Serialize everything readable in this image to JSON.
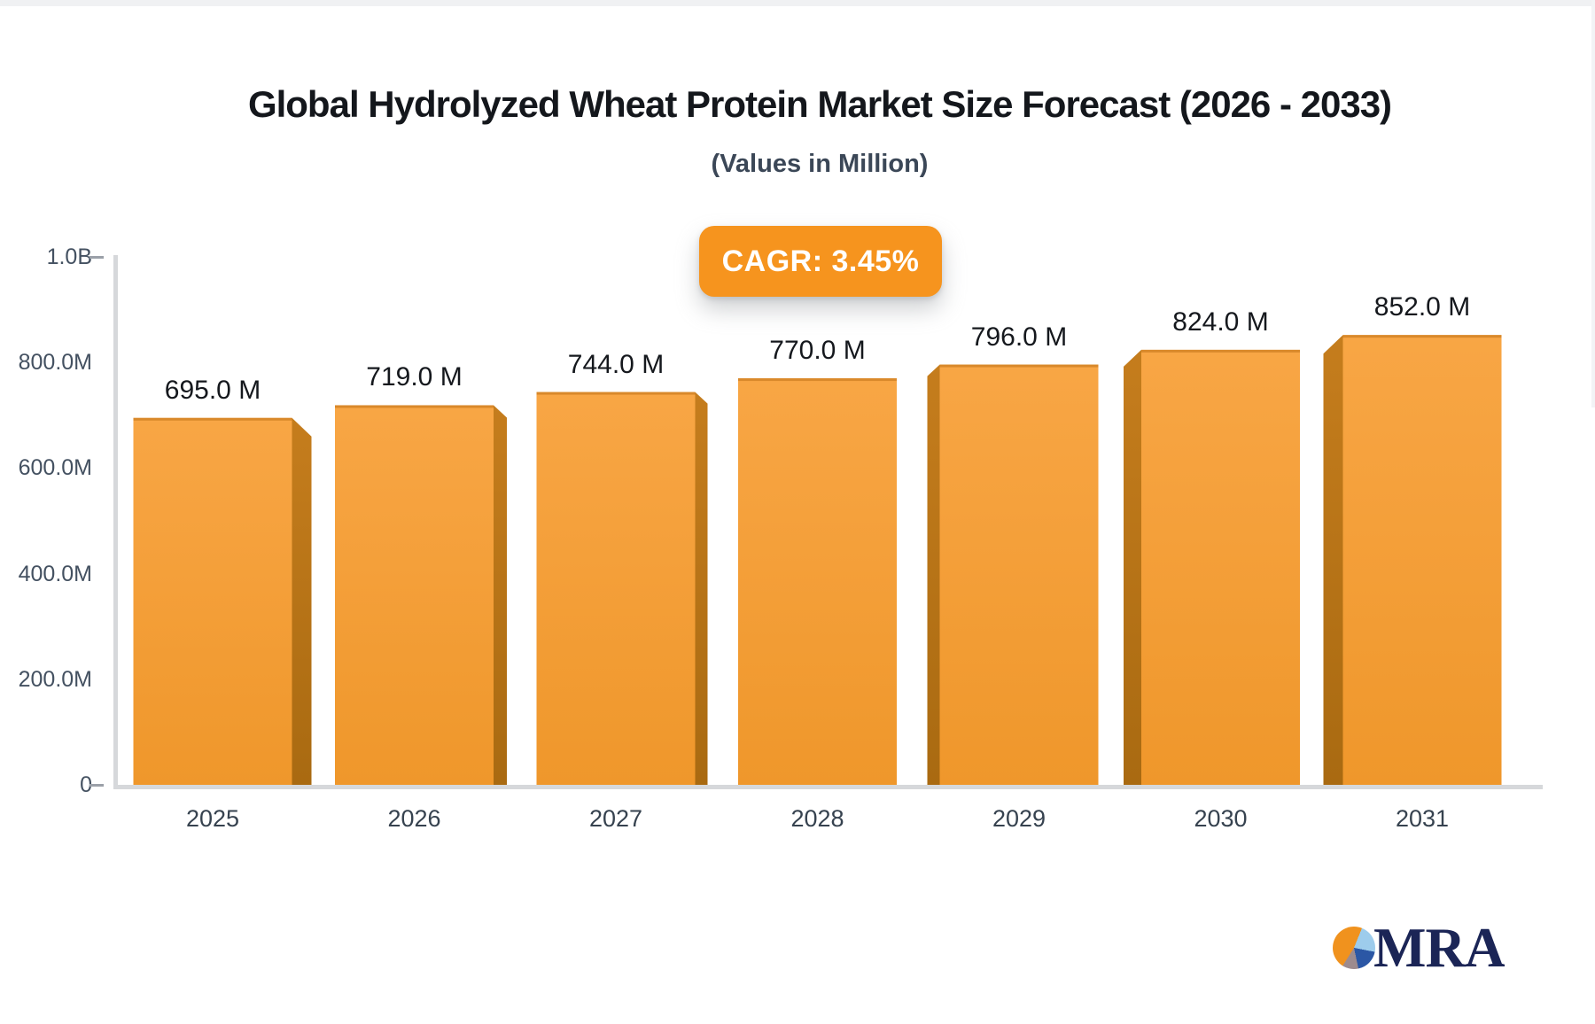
{
  "header": {
    "title": "Global Hydrolyzed Wheat Protein Market Size Forecast (2026 - 2033)",
    "subtitle": "(Values in Million)"
  },
  "cagr_badge": {
    "label": "CAGR: 3.45%",
    "background_color": "#F6941E",
    "text_color": "#FFFFFF"
  },
  "chart_data": {
    "type": "bar",
    "title": "Global Hydrolyzed Wheat Protein Market Size Forecast (2026 - 2033)",
    "subtitle": "(Values in Million)",
    "cagr": "3.45%",
    "categories": [
      "2025",
      "2026",
      "2027",
      "2028",
      "2029",
      "2030",
      "2031"
    ],
    "values": [
      695,
      719,
      744,
      770,
      796,
      824,
      852
    ],
    "data_labels": [
      "695.0 M",
      "719.0 M",
      "744.0 M",
      "770.0 M",
      "796.0 M",
      "824.0 M",
      "852.0 M"
    ],
    "ylim": [
      0,
      1000
    ],
    "y_axis": {
      "ticks": [
        {
          "label": "1.0B",
          "value": 1000,
          "dash": true
        },
        {
          "label": "800.0M",
          "value": 800,
          "dash": false
        },
        {
          "label": "600.0M",
          "value": 600,
          "dash": false
        },
        {
          "label": "400.0M",
          "value": 400,
          "dash": false
        },
        {
          "label": "200.0M",
          "value": 200,
          "dash": false
        },
        {
          "label": "0",
          "value": 0,
          "dash": true
        }
      ]
    },
    "grid": false,
    "legend": false,
    "bar_face_color_top": "#F8A645",
    "bar_face_color_bottom": "#EF972B",
    "bar_top_edge_color": "#D9892B",
    "bar_side_color_top": "#C57D1D",
    "bar_side_color_bottom": "#A96A11"
  },
  "logo": {
    "text": "MRA",
    "icon": "pie-chart-icon",
    "text_color": "#1B2556",
    "pie_colors": [
      "#F0921E",
      "#9DCCEC",
      "#2B57A5",
      "#9D8B8E"
    ]
  }
}
